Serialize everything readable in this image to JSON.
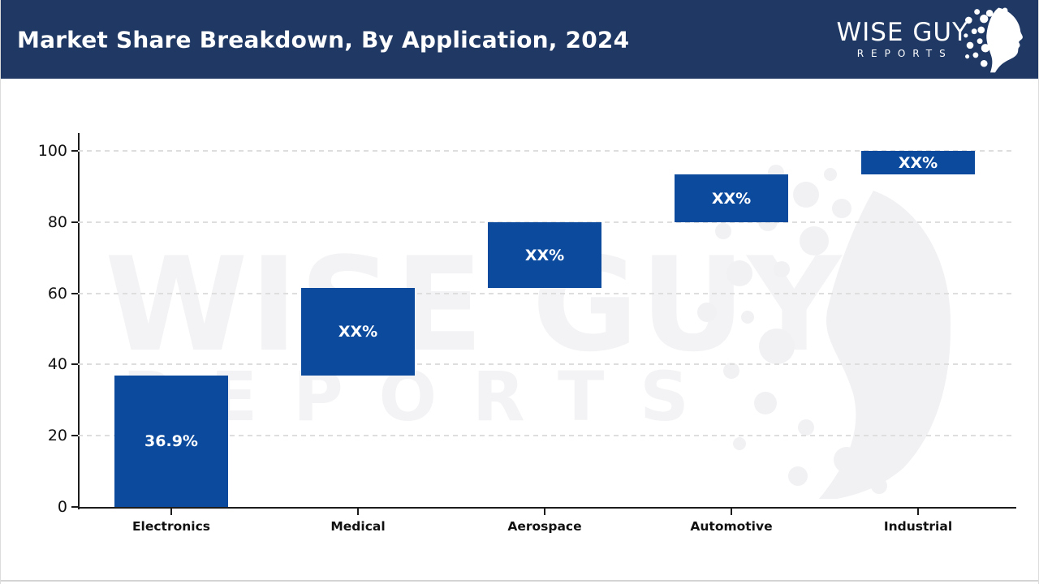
{
  "header": {
    "title": "Market Share Breakdown, By Application, 2024",
    "bg_color": "#1f3864",
    "logo": {
      "line1": "WISE GUY",
      "line2": "REPORTS"
    }
  },
  "watermark": {
    "line1": "WISE GUY",
    "line2": "REPORTS"
  },
  "chart_data": {
    "type": "bar",
    "subtype": "waterfall",
    "title": "Market Share Breakdown, By Application, 2024",
    "categories": [
      "Electronics",
      "Medical",
      "Aerospace",
      "Automotive",
      "Industrial"
    ],
    "segments": [
      {
        "category": "Electronics",
        "start": 0,
        "end": 36.9,
        "value": 36.9,
        "label": "36.9%"
      },
      {
        "category": "Medical",
        "start": 36.9,
        "end": 61.4,
        "value": 24.5,
        "label": "XX%"
      },
      {
        "category": "Aerospace",
        "start": 61.4,
        "end": 80.0,
        "value": 18.6,
        "label": "XX%"
      },
      {
        "category": "Automotive",
        "start": 80.0,
        "end": 93.3,
        "value": 13.3,
        "label": "XX%"
      },
      {
        "category": "Industrial",
        "start": 93.3,
        "end": 100.0,
        "value": 6.7,
        "label": "XX%"
      }
    ],
    "y_ticks": [
      0,
      20,
      40,
      60,
      80,
      100
    ],
    "ylim": [
      0,
      105
    ],
    "xlabel": "",
    "ylabel": "",
    "grid": "horizontal dashed",
    "legend": "none",
    "bar_color": "#0c4a9e",
    "bar_label_color": "#ffffff",
    "axis_color": "#1c1c1c",
    "grid_color": "#dedede"
  }
}
